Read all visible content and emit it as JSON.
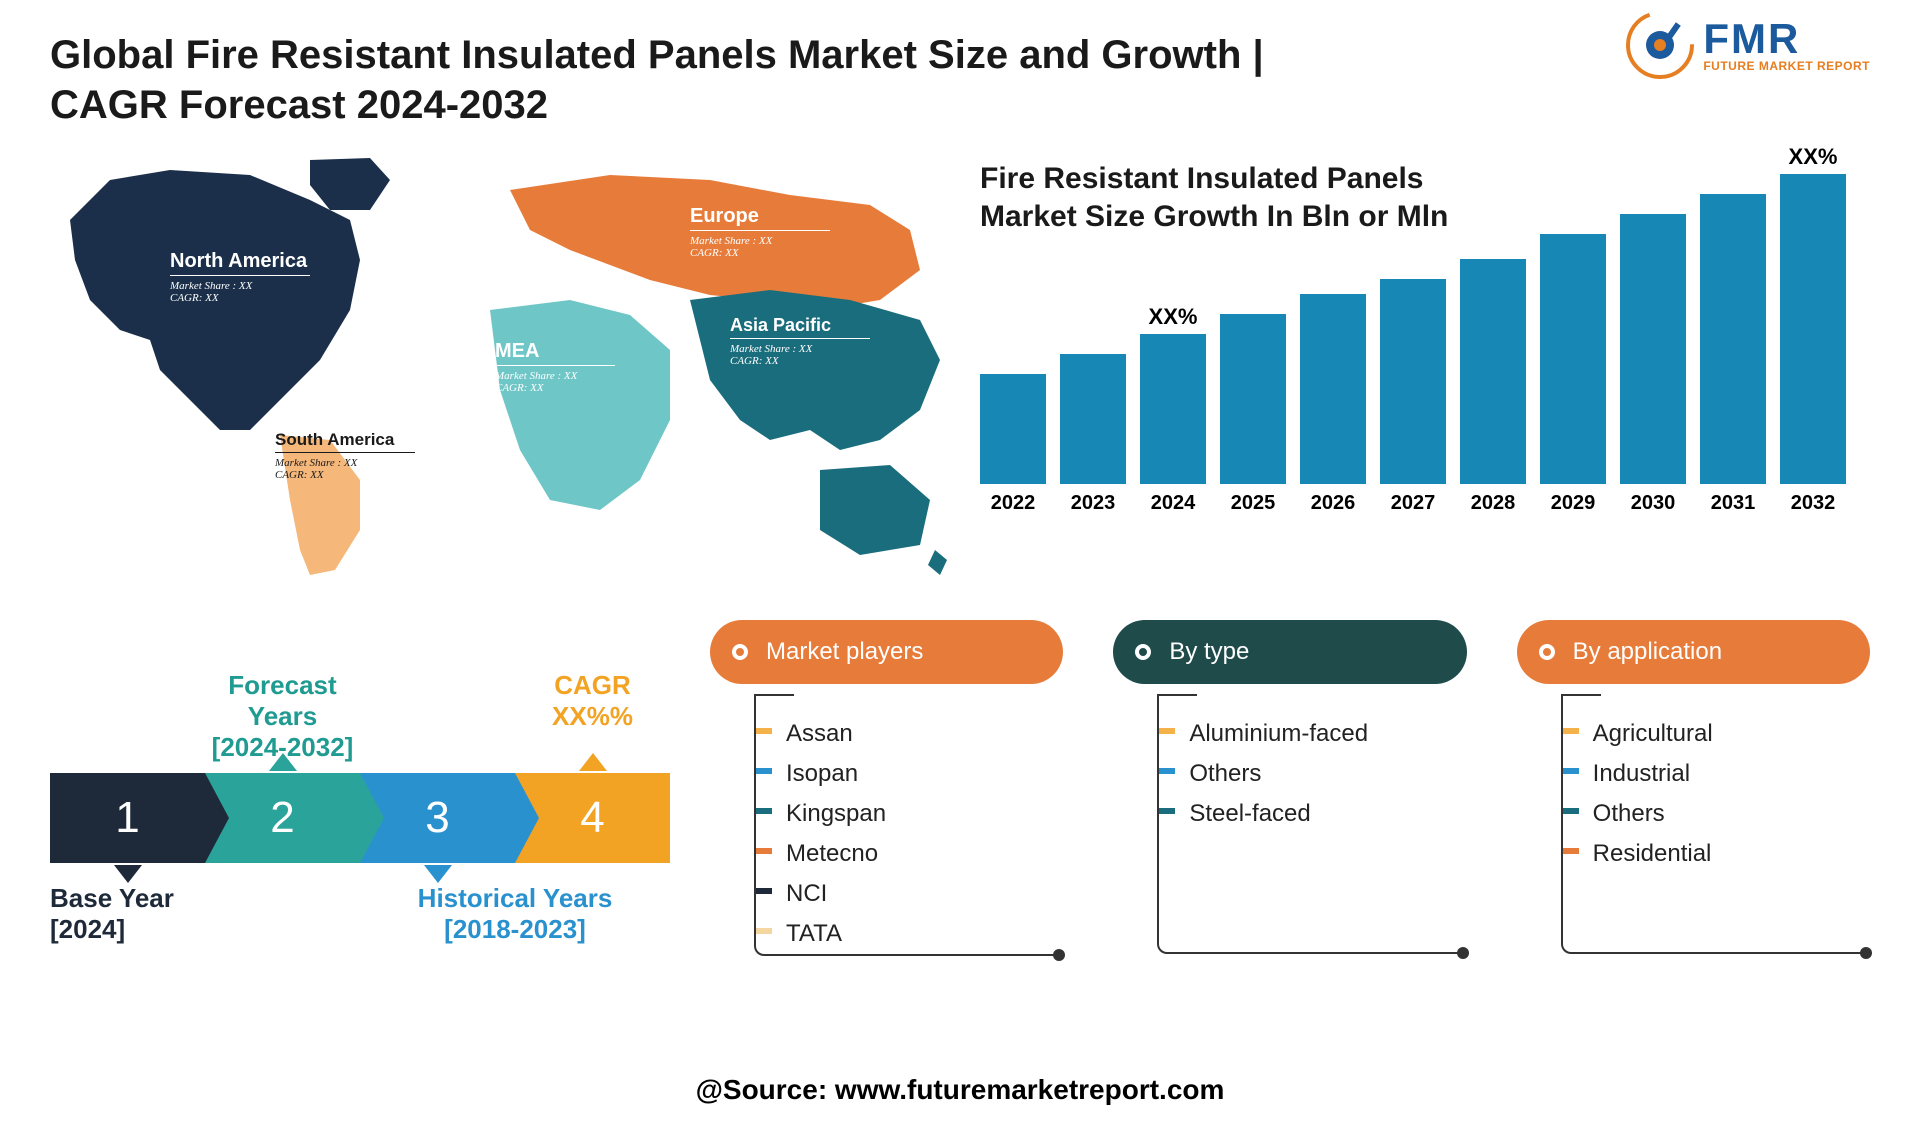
{
  "page": {
    "title": "Global Fire Resistant Insulated Panels Market Size and Growth | CAGR Forecast 2024-2032",
    "source": "@Source: www.futuremarketreport.com"
  },
  "logo": {
    "fmr": "FMR",
    "sub": "FUTURE MARKET REPORT"
  },
  "map": {
    "regions": {
      "north_america": {
        "name": "North America",
        "share": "Market Share : XX",
        "cagr": "CAGR: XX",
        "color": "#1b2f4a"
      },
      "south_america": {
        "name": "South America",
        "share": "Market Share : XX",
        "cagr": "CAGR: XX",
        "color": "#f5b87a"
      },
      "europe": {
        "name": "Europe",
        "share": "Market Share : XX",
        "cagr": "CAGR: XX",
        "color": "#e77c3a"
      },
      "mea": {
        "name": "MEA",
        "share": "Market Share : XX",
        "cagr": "CAGR: XX",
        "color": "#6fc6c6"
      },
      "asia_pacific": {
        "name": "Asia Pacific",
        "share": "Market Share : XX",
        "cagr": "CAGR: XX",
        "color": "#1a6d7c"
      }
    }
  },
  "chart": {
    "title": "Fire Resistant Insulated Panels Market Size Growth In Bln or Mln",
    "bar_color": "#1788b5",
    "pct_label_2024": "XX%",
    "pct_label_2032": "XX%",
    "years": [
      "2022",
      "2023",
      "2024",
      "2025",
      "2026",
      "2027",
      "2028",
      "2029",
      "2030",
      "2031",
      "2032"
    ],
    "values": [
      110,
      130,
      150,
      170,
      190,
      205,
      225,
      250,
      270,
      290,
      310
    ]
  },
  "timeline": {
    "forecast_label": "Forecast Years",
    "forecast_range": "[2024-2032]",
    "cagr_label": "CAGR",
    "cagr_value": "XX%%",
    "base_label": "Base Year",
    "base_value": "[2024]",
    "hist_label": "Historical Years",
    "hist_range": "[2018-2023]",
    "segments": [
      {
        "num": "1",
        "color": "#1e2a3a"
      },
      {
        "num": "2",
        "color": "#2aa39a"
      },
      {
        "num": "3",
        "color": "#2a91cf"
      },
      {
        "num": "4",
        "color": "#f2a324"
      }
    ],
    "label_colors": {
      "forecast": "#1f9b92",
      "cagr": "#f2a324",
      "base": "#1e2a3a",
      "hist": "#2a91cf"
    }
  },
  "pills": {
    "market_players": {
      "label": "Market players",
      "pill_color": "#e77c3a",
      "items": [
        {
          "text": "Assan",
          "bullet": "#f5b24a"
        },
        {
          "text": "Isopan",
          "bullet": "#2a91cf"
        },
        {
          "text": "Kingspan",
          "bullet": "#1a6d7c"
        },
        {
          "text": "Metecno",
          "bullet": "#e77c3a"
        },
        {
          "text": "NCI",
          "bullet": "#1e2a3a"
        },
        {
          "text": "TATA",
          "bullet": "#f5d6a0"
        }
      ]
    },
    "by_type": {
      "label": "By type",
      "pill_color": "#1f4b4b",
      "items": [
        {
          "text": "Aluminium-faced",
          "bullet": "#f5b24a"
        },
        {
          "text": "Others",
          "bullet": "#2a91cf"
        },
        {
          "text": "Steel-faced",
          "bullet": "#1a6d7c"
        }
      ]
    },
    "by_application": {
      "label": "By application",
      "pill_color": "#e77c3a",
      "items": [
        {
          "text": "Agricultural",
          "bullet": "#f5b24a"
        },
        {
          "text": "Industrial",
          "bullet": "#2a91cf"
        },
        {
          "text": "Others",
          "bullet": "#1a6d7c"
        },
        {
          "text": "Residential",
          "bullet": "#e77c3a"
        }
      ]
    }
  }
}
